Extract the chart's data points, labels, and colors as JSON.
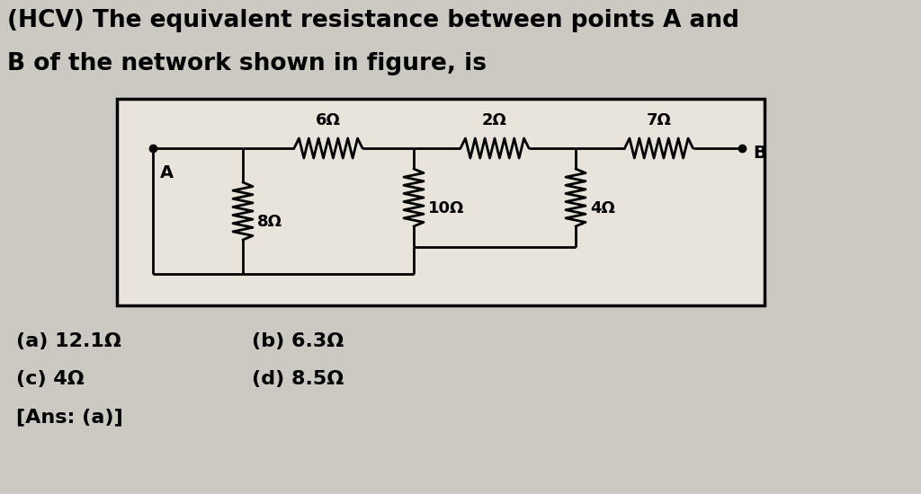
{
  "title_line1": "(HCV) The equivalent resistance between points A and",
  "title_line2": "B of the network shown in figure, is",
  "bg_color": "#ccc8c2",
  "box_bg": "#e8e3db",
  "options": [
    [
      "(a) 12.1Ω",
      "(b) 6.3Ω"
    ],
    [
      "(c) 4Ω",
      "(d) 8.5Ω"
    ]
  ],
  "ans": "[Ans: (a)]",
  "font_color": "#000000",
  "series_labels": [
    "6Ω",
    "2Ω",
    "7Ω"
  ],
  "shunt_labels": [
    "8Ω",
    "10Ω",
    "4Ω"
  ]
}
